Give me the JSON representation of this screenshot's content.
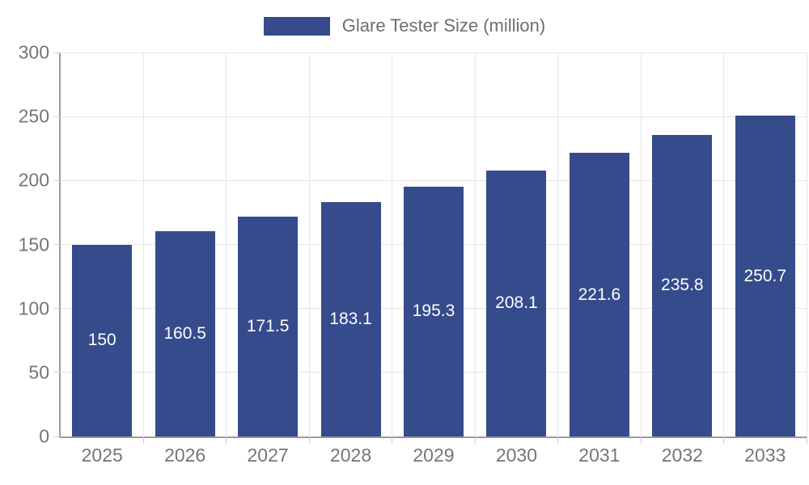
{
  "legend": {
    "label": "Glare Tester Size (million)"
  },
  "colors": {
    "bar": "#364b8c",
    "grid": "#e6e6e6",
    "axis_line": "#9a9a9a",
    "tick_mark": "#cccccc",
    "axis_label": "#757575",
    "legend_label": "#6e6e6e",
    "bar_label": "#ffffff"
  },
  "chart_data": {
    "type": "bar",
    "title": "",
    "xlabel": "",
    "ylabel": "",
    "categories": [
      "2025",
      "2026",
      "2027",
      "2028",
      "2029",
      "2030",
      "2031",
      "2032",
      "2033"
    ],
    "values": [
      150,
      160.5,
      171.5,
      183.1,
      195.3,
      208.1,
      221.6,
      235.8,
      250.7
    ],
    "bar_labels": [
      "150",
      "160.5",
      "171.5",
      "183.1",
      "195.3",
      "208.1",
      "221.6",
      "235.8",
      "250.7"
    ],
    "series_name": "Glare Tester Size (million)",
    "ylim": [
      0,
      300
    ],
    "ytick_interval": 50,
    "ytick_labels": [
      "0",
      "50",
      "100",
      "150",
      "200",
      "250",
      "300"
    ],
    "grid": true,
    "legend_position": "top-center",
    "bar_label_position": "center-inside"
  }
}
